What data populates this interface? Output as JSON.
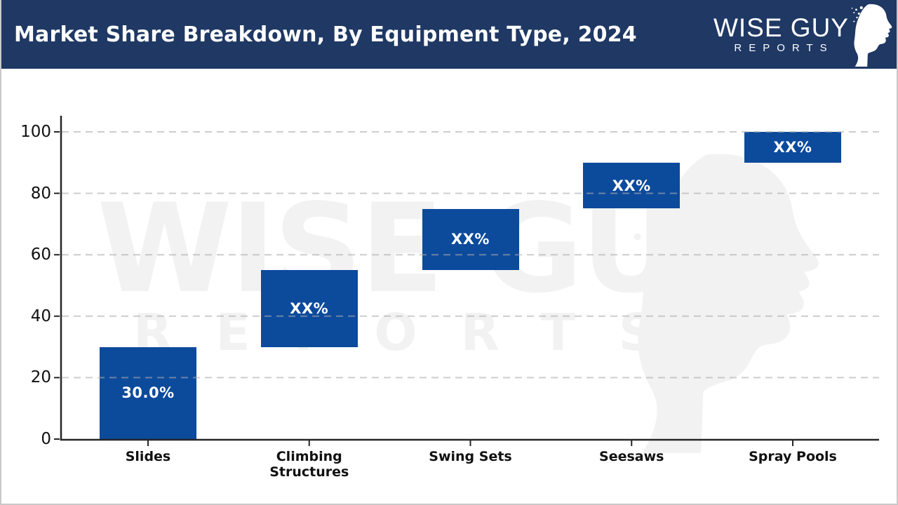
{
  "header": {
    "title": "Market Share Breakdown, By Equipment Type, 2024",
    "logo": {
      "wordmark": "WISE GUY",
      "subtext": "REPORTS"
    }
  },
  "watermark": {
    "wordmark": "WISE GUY",
    "subtext": "REPORTS"
  },
  "colors": {
    "header_bg": "#1f3864",
    "bar": "#0c4a9c",
    "bar_label_text": "#ffffff",
    "axis": "#262626",
    "tick_label": "#111111",
    "gridline": "#d9d9d9",
    "watermark": "#f2f2f2",
    "page_border": "#c9c9c9"
  },
  "chart_data": {
    "type": "bar",
    "subtype": "waterfall",
    "title": "Market Share Breakdown, By Equipment Type, 2024",
    "xlabel": "",
    "ylabel": "",
    "ylim": [
      0,
      105
    ],
    "yticks": [
      0,
      20,
      40,
      60,
      80,
      100
    ],
    "grid": "horizontal-dashed",
    "legend": "none",
    "categories": [
      "Slides",
      "Climbing\nStructures",
      "Swing Sets",
      "Seesaws",
      "Spray Pools"
    ],
    "segments": [
      {
        "category": "Slides",
        "start": 0,
        "end": 30,
        "value": 30,
        "label": "30.0%"
      },
      {
        "category": "Climbing\nStructures",
        "start": 30,
        "end": 55,
        "value": 25,
        "label": "XX%"
      },
      {
        "category": "Swing Sets",
        "start": 55,
        "end": 75,
        "value": 20,
        "label": "XX%"
      },
      {
        "category": "Seesaws",
        "start": 75,
        "end": 90,
        "value": 15,
        "label": "XX%"
      },
      {
        "category": "Spray Pools",
        "start": 90,
        "end": 100,
        "value": 10,
        "label": "XX%"
      }
    ]
  }
}
